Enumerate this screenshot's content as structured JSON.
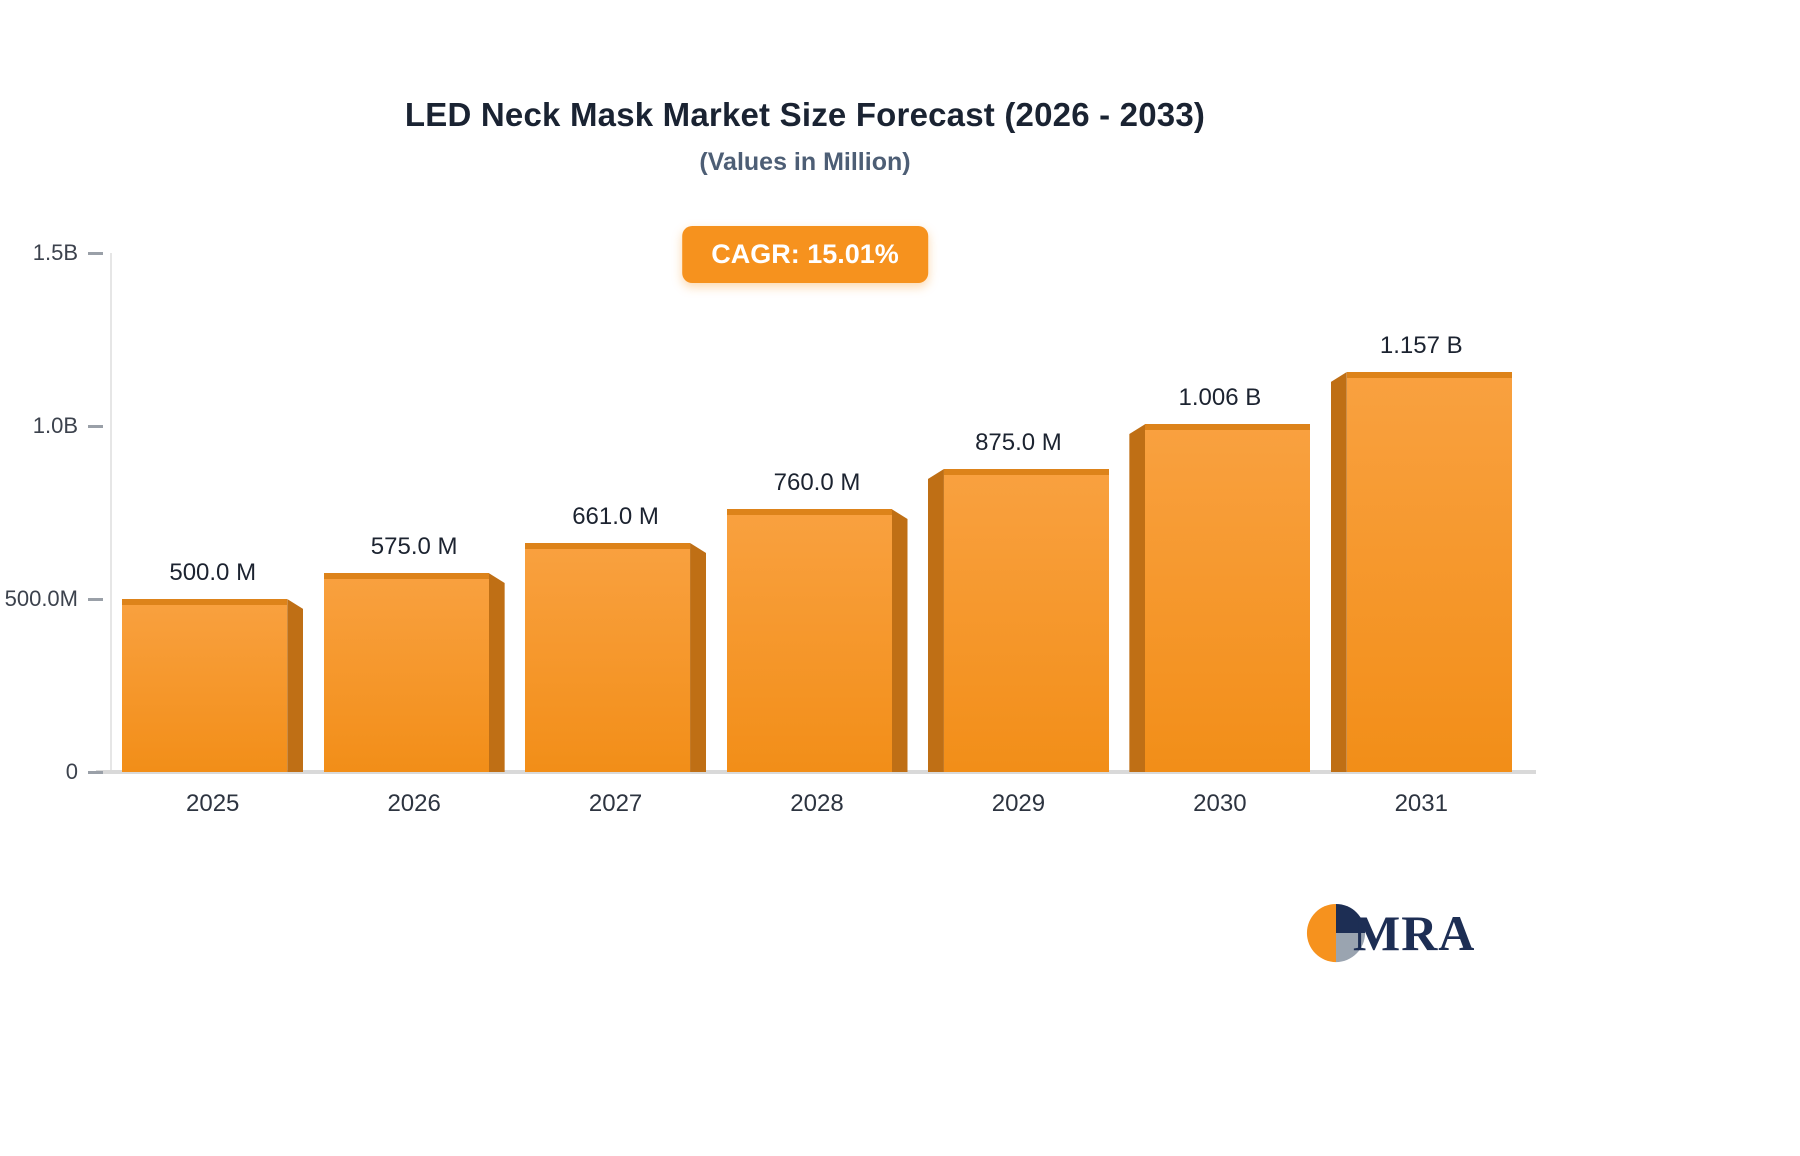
{
  "chart_data": {
    "type": "bar",
    "title": "LED Neck Mask Market Size Forecast (2026 - 2033)",
    "subtitle": "(Values in Million)",
    "badge": "CAGR: 15.01%",
    "categories": [
      "2025",
      "2026",
      "2027",
      "2028",
      "2029",
      "2030",
      "2031"
    ],
    "values_millions": [
      500,
      575,
      661,
      760,
      875,
      1006,
      1157
    ],
    "value_labels": [
      "500.0 M",
      "575.0 M",
      "661.0 M",
      "760.0 M",
      "875.0 M",
      "1.006 B",
      "1.157 B"
    ],
    "ylim_millions": [
      0,
      1500
    ],
    "y_ticks": [
      {
        "label": "1.5B",
        "value": 1500
      },
      {
        "label": "1.0B",
        "value": 1000
      },
      {
        "label": "500.0M",
        "value": 500
      },
      {
        "label": "0",
        "value": 0
      }
    ],
    "grid": "off",
    "legend": "none",
    "bar_color": "#f6921e",
    "bar_side_color": "#bf6f15",
    "badge_color": "#f6921e"
  },
  "logo": {
    "text": "MRA",
    "colors": {
      "orange": "#f6921e",
      "navy": "#1d2e54",
      "gray": "#9aa4b0"
    }
  }
}
